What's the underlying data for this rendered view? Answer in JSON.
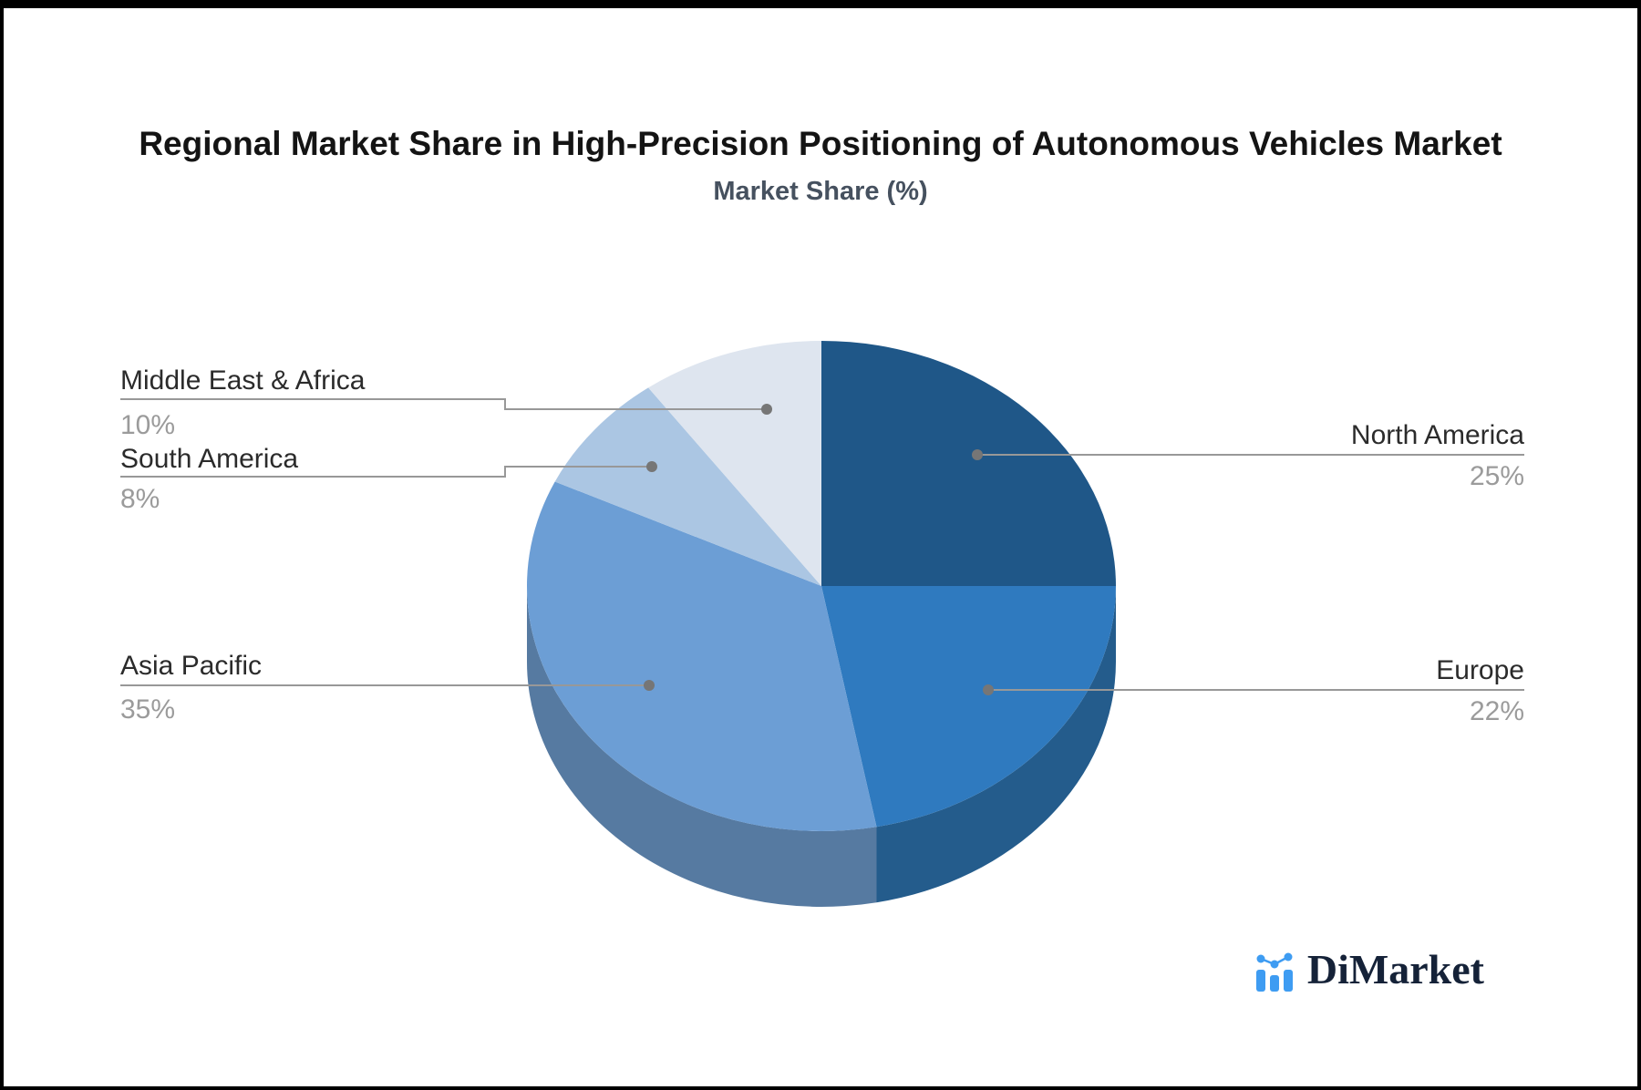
{
  "chart_data": {
    "type": "pie",
    "style": "3d",
    "title": "Regional Market Share in High-Precision Positioning of Autonomous Vehicles Market",
    "subtitle": "Market Share (%)",
    "unit": "%",
    "direction": "clockwise",
    "start_angle_deg": 0,
    "legend_position": "callout-labels",
    "slices": [
      {
        "label": "North America",
        "value": 25,
        "pct": "25%",
        "color": "#1F5788",
        "rim_color": "#245C8C"
      },
      {
        "label": "Europe",
        "value": 22,
        "pct": "22%",
        "color": "#2F7ABF",
        "rim_color": "#245C8C"
      },
      {
        "label": "Asia Pacific",
        "value": 35,
        "pct": "35%",
        "color": "#6C9ED5",
        "rim_color": "#567AA1"
      },
      {
        "label": "South America",
        "value": 8,
        "pct": "8%",
        "color": "#ABC6E3",
        "rim_color": null
      },
      {
        "label": "Middle East & Africa",
        "value": 10,
        "pct": "10%",
        "color": "#DEE5EF",
        "rim_color": null
      }
    ],
    "leader_line_color": "#989898",
    "dot_color": "#767676",
    "label_color": "#2b2b2b",
    "pct_color": "#9b9b9b"
  },
  "branding": {
    "logo_text": "DiMarket",
    "logo_icon_color": "#3E9CF2",
    "logo_text_color": "#152238"
  }
}
